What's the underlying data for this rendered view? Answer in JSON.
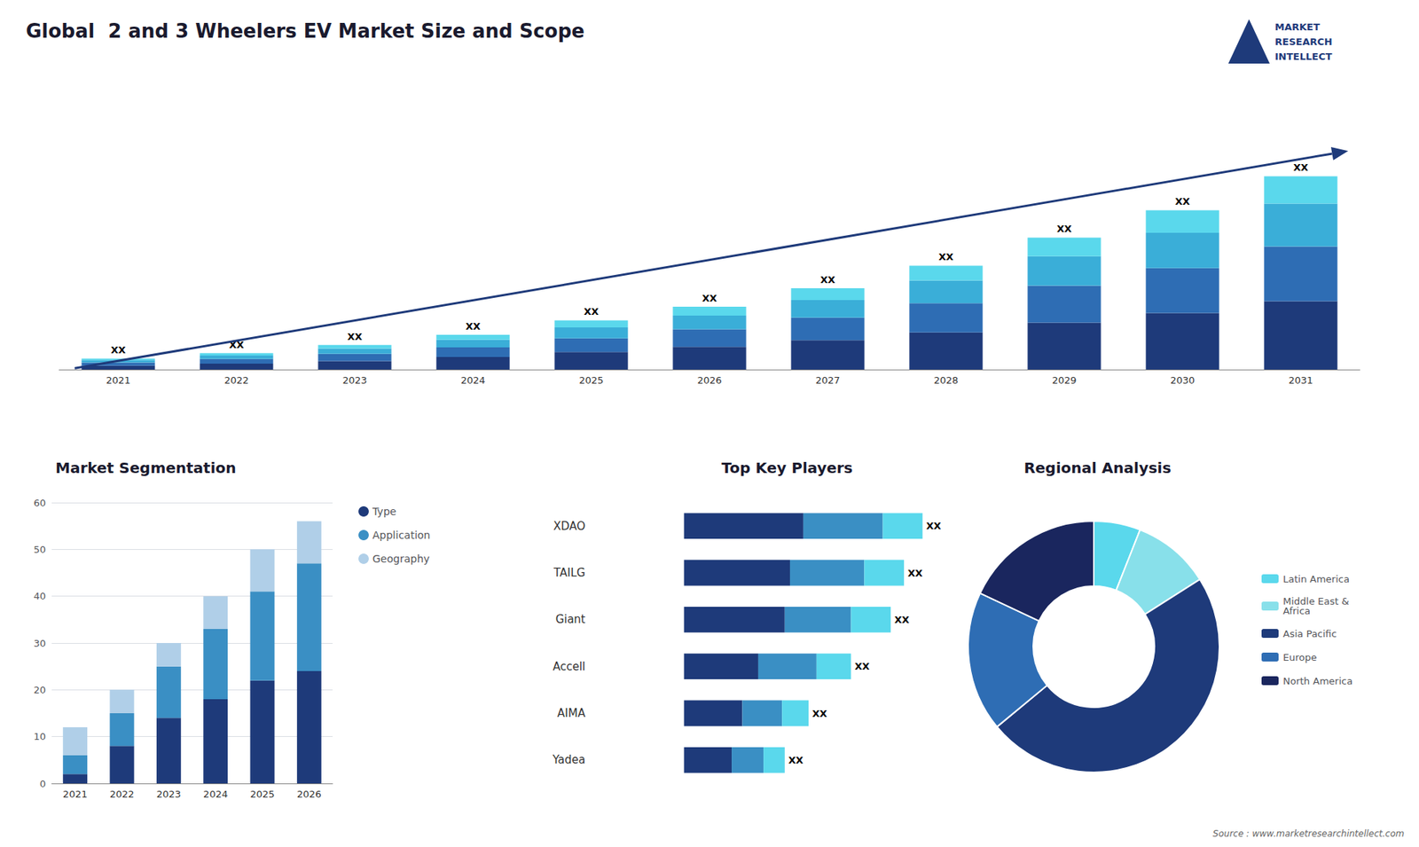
{
  "chart_data": [
    {
      "type": "bar",
      "title": "Global  2 and 3 Wheelers EV Market Size and Scope",
      "annotations": [
        "MARKET",
        "RESEARCH",
        "INTELLECT",
        "Source : www.marketresearchintellect.com"
      ],
      "categories": [
        "2021",
        "2022",
        "2023",
        "2024",
        "2025",
        "2026",
        "2027",
        "2028",
        "2029",
        "2030",
        "2031"
      ],
      "series": [
        {
          "color": "#1e3a7a",
          "values": [
            1.0,
            1.5,
            2.2,
            3.2,
            4.5,
            5.8,
            7.5,
            9.5,
            12.0,
            14.5,
            17.5
          ]
        },
        {
          "color": "#2e6db4",
          "values": [
            0.8,
            1.2,
            1.8,
            2.5,
            3.5,
            4.5,
            5.8,
            7.5,
            9.5,
            11.5,
            14.0
          ]
        },
        {
          "color": "#3aaed8",
          "values": [
            0.6,
            0.9,
            1.4,
            1.9,
            2.8,
            3.5,
            4.5,
            5.8,
            7.5,
            9.0,
            11.0
          ]
        },
        {
          "color": "#5ad8ec",
          "values": [
            0.4,
            0.6,
            0.9,
            1.3,
            1.8,
            2.3,
            3.0,
            3.8,
            4.8,
            5.8,
            7.0
          ],
          "value_labels": [
            "XX",
            "XX",
            "XX",
            "XX",
            "XX",
            "XX",
            "XX",
            "XX",
            "XX",
            "XX",
            "XX"
          ]
        }
      ],
      "stacked": true,
      "ylim": [
        0,
        64.35
      ],
      "tick_labels": "x",
      "grid": false
    },
    {
      "type": "bar",
      "title": "Market Segmentation",
      "categories": [
        "2021",
        "2022",
        "2023",
        "2024",
        "2025",
        "2026"
      ],
      "series": [
        {
          "name": "Type",
          "color": "#1e3a7a",
          "values": [
            2,
            8,
            14,
            18,
            22,
            24
          ]
        },
        {
          "name": "Application",
          "color": "#3a8fc4",
          "values": [
            4,
            7,
            11,
            15,
            19,
            23
          ]
        },
        {
          "name": "Geography",
          "color": "#b0cfe8",
          "values": [
            6,
            5,
            5,
            7,
            9,
            9
          ]
        }
      ],
      "stacked": true,
      "ylim": [
        0,
        60
      ],
      "yticks": [
        0,
        10,
        20,
        30,
        40,
        50,
        60
      ],
      "grid": true,
      "legend": "right"
    },
    {
      "type": "bar",
      "title": "Top Key Players",
      "orientation": "horizontal",
      "categories": [
        "XDAO",
        "TAILG",
        "Giant",
        "Accell",
        "AIMA",
        "Yadea"
      ],
      "series": [
        {
          "color": "#1e3a7a",
          "values": [
            4.5,
            4.0,
            3.8,
            2.8,
            2.2,
            1.8
          ]
        },
        {
          "color": "#3a8fc4",
          "values": [
            3.0,
            2.8,
            2.5,
            2.2,
            1.5,
            1.2
          ]
        },
        {
          "color": "#5ad8ec",
          "values": [
            1.5,
            1.5,
            1.5,
            1.3,
            1.0,
            0.8
          ],
          "value_labels": [
            "XX",
            "XX",
            "XX",
            "XX",
            "XX",
            "XX"
          ]
        }
      ],
      "stacked": true,
      "xlim": [
        -3.5,
        11
      ],
      "tick_labels": "y",
      "grid": false
    },
    {
      "type": "pie",
      "title": "Regional Analysis",
      "categories": [
        "Latin America",
        "Middle East &\nAfrica",
        "Asia Pacific",
        "Europe",
        "North America"
      ],
      "values": [
        6,
        10,
        48,
        18,
        18
      ],
      "colors": [
        "#5ad8ec",
        "#88e0ea",
        "#1e3a7a",
        "#2e6db4",
        "#1a265e"
      ],
      "legend": "right"
    }
  ]
}
